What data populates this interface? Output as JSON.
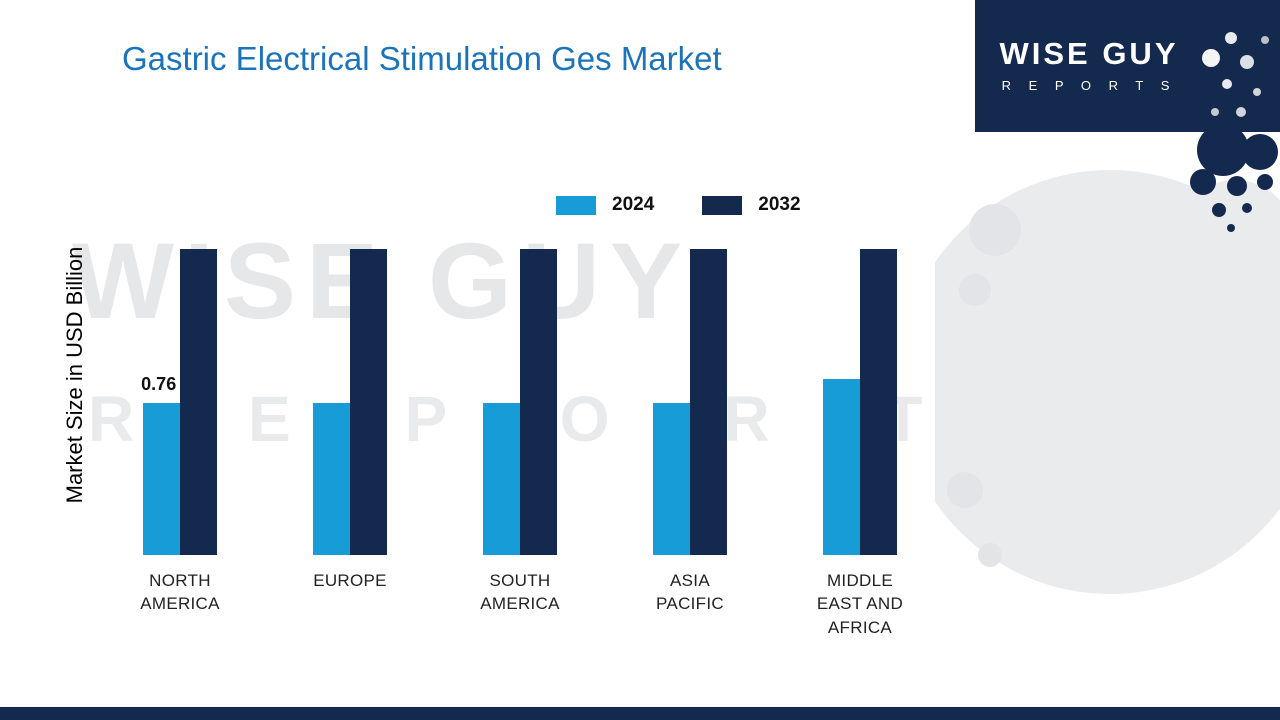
{
  "page": {
    "title": "Gastric Electrical Stimulation Ges Market"
  },
  "logo": {
    "line1": "WISE GUY",
    "line2": "R E P O R T S"
  },
  "watermark": {
    "line1": "WISE GUY",
    "line2": "R E P O R T S"
  },
  "colors": {
    "title_blue": "#1b74bb",
    "series_2024": "#189cd8",
    "series_2032": "#14294e",
    "watermark_gray": "#e6e7e9",
    "background": "#ffffff"
  },
  "chart_data": {
    "type": "bar",
    "title": "Gastric Electrical Stimulation Ges Market",
    "xlabel": "",
    "ylabel": "Market Size in USD Billion",
    "categories": [
      "NORTH AMERICA",
      "EUROPE",
      "SOUTH AMERICA",
      "ASIA PACIFIC",
      "MIDDLE EAST AND AFRICA"
    ],
    "series": [
      {
        "name": "2024",
        "color": "#189cd8",
        "values": [
          0.76,
          0.76,
          0.76,
          0.76,
          0.88
        ]
      },
      {
        "name": "2032",
        "color": "#14294e",
        "values": [
          1.53,
          1.53,
          1.53,
          1.53,
          1.53
        ]
      }
    ],
    "data_labels": [
      {
        "series": "2024",
        "category": "NORTH AMERICA",
        "text": "0.76"
      }
    ],
    "ylim": [
      0,
      1.6
    ],
    "grid": false,
    "legend_position": "top"
  }
}
